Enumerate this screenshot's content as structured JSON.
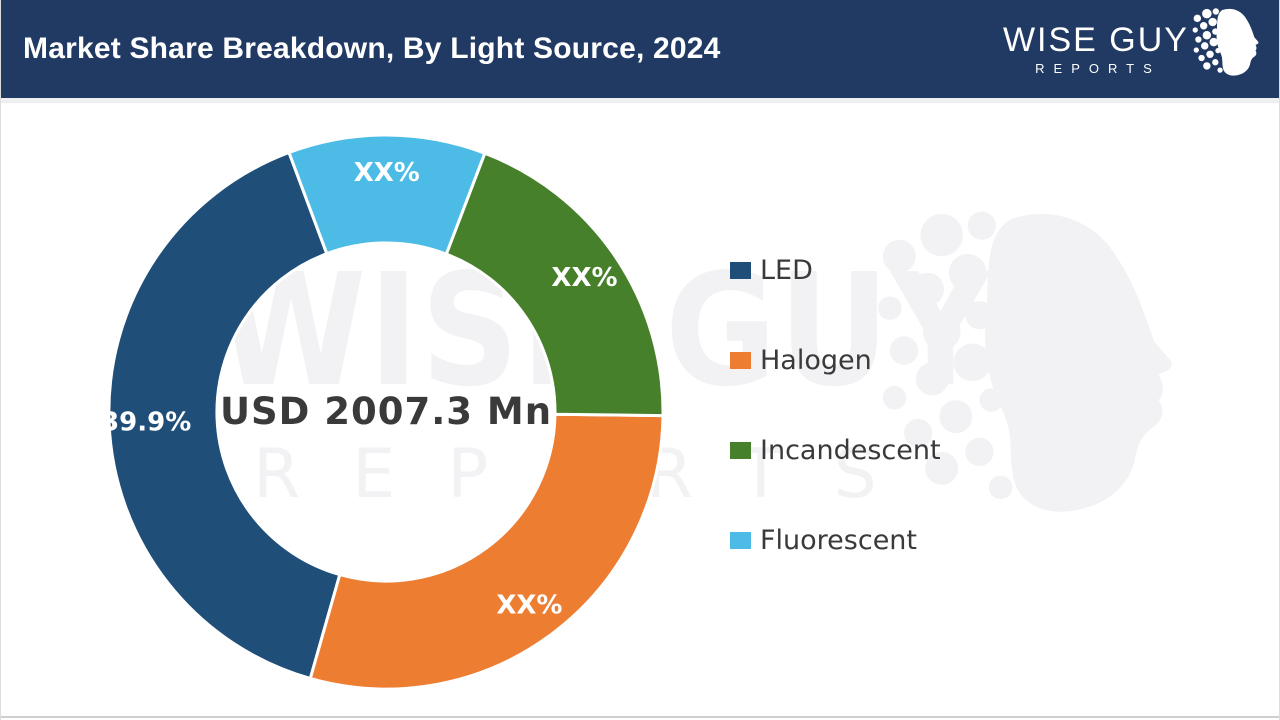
{
  "theme": {
    "header_bg": "#203a64",
    "text_dark": "#3a3a3a",
    "watermark_color": "#f2f2f4",
    "bottom_rule_color": "#cfcfcf"
  },
  "header": {
    "title": "Market Share Breakdown, By Light Source, 2024",
    "logo": {
      "name": "WISE GUY",
      "subtitle": "REPORTS",
      "icon": "face-profile-dots-icon"
    }
  },
  "watermark": {
    "line1": "WISE GUY",
    "line2": "REPORTS",
    "icon": "face-profile-dots-icon"
  },
  "chart_data": {
    "type": "pie",
    "subtype": "donut",
    "title": "Market Share Breakdown, By Light Source, 2024",
    "categories": [
      "LED",
      "Halogen",
      "Incandescent",
      "Fluorescent"
    ],
    "values": [
      39.9,
      29.2,
      19.4,
      11.5
    ],
    "slice_labels": [
      "39.9%",
      "XX%",
      "XX%",
      "XX%"
    ],
    "colors": [
      "#1f4e79",
      "#ed7d31",
      "#46802b",
      "#4cbce6"
    ],
    "center_label": "USD 2007.3 Mn",
    "start_angle_deg": 110.5,
    "direction": "counterclockwise",
    "hole_ratio": 0.61,
    "legend_position": "right",
    "label_color": "#ffffff",
    "separator_color": "#ffffff"
  }
}
